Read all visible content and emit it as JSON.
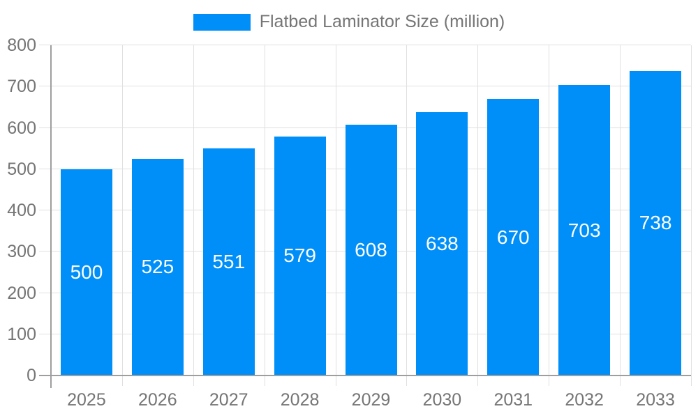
{
  "chart_data": {
    "type": "bar",
    "title": "",
    "legend_label": "Flatbed Laminator Size (million)",
    "legend_position": "top",
    "categories": [
      "2025",
      "2026",
      "2027",
      "2028",
      "2029",
      "2030",
      "2031",
      "2032",
      "2033"
    ],
    "values": [
      500,
      525,
      551,
      579,
      608,
      638,
      670,
      703,
      738
    ],
    "xlabel": "",
    "ylabel": "",
    "ylim": [
      0,
      800
    ],
    "ytick_step": 100,
    "ytick_labels": [
      "0",
      "100",
      "200",
      "300",
      "400",
      "500",
      "600",
      "700",
      "800"
    ],
    "grid": true,
    "bar_labels_inside": true,
    "colors": {
      "bar": "#008FF8",
      "bar_label": "#ffffff",
      "axis_text": "#757575",
      "grid_line": "#e0e0e0",
      "axis_line": "#9e9e9e",
      "background": "#ffffff"
    }
  }
}
